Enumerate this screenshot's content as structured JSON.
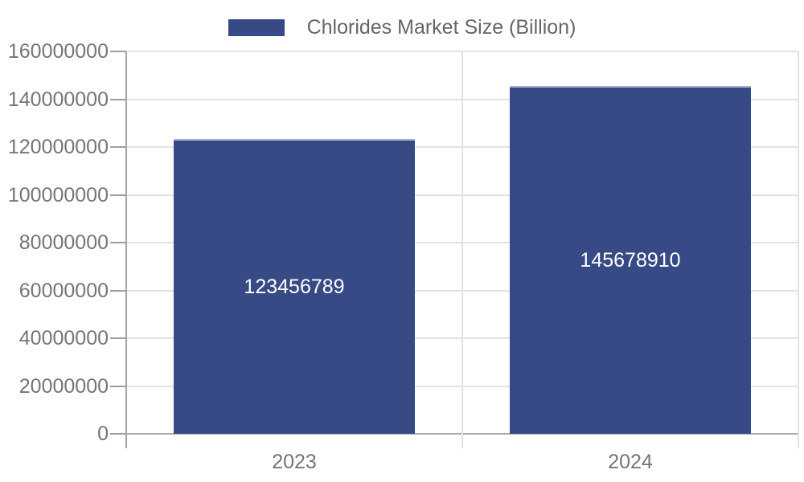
{
  "legend": {
    "label": "Chlorides Market Size (Billion)"
  },
  "chart_data": {
    "type": "bar",
    "title": "Chlorides Market Size (Billion)",
    "xlabel": "",
    "ylabel": "",
    "categories": [
      "2023",
      "2024"
    ],
    "series": [
      {
        "name": "Chlorides Market Size (Billion)",
        "values": [
          123456789,
          145678910
        ]
      }
    ],
    "bar_value_labels": [
      "123456789",
      "145678910"
    ],
    "ylim": [
      0,
      160000000
    ],
    "ytick_step": 20000000,
    "ytick_labels": [
      "0",
      "20000000",
      "40000000",
      "60000000",
      "80000000",
      "100000000",
      "120000000",
      "140000000",
      "160000000"
    ],
    "grid": true,
    "legend_position": "top-center",
    "colors": {
      "bar": "#374a85",
      "bar_top_edge": "#a9b2d2",
      "grid": "#e2e2e2",
      "axis_line": "#a3a3a3",
      "baseline": "#ababab",
      "tick": "#9e9e9e",
      "axis_label": "#757575",
      "bar_label": "#ffffff",
      "legend_text": "#666666",
      "background": "#ffffff"
    }
  }
}
